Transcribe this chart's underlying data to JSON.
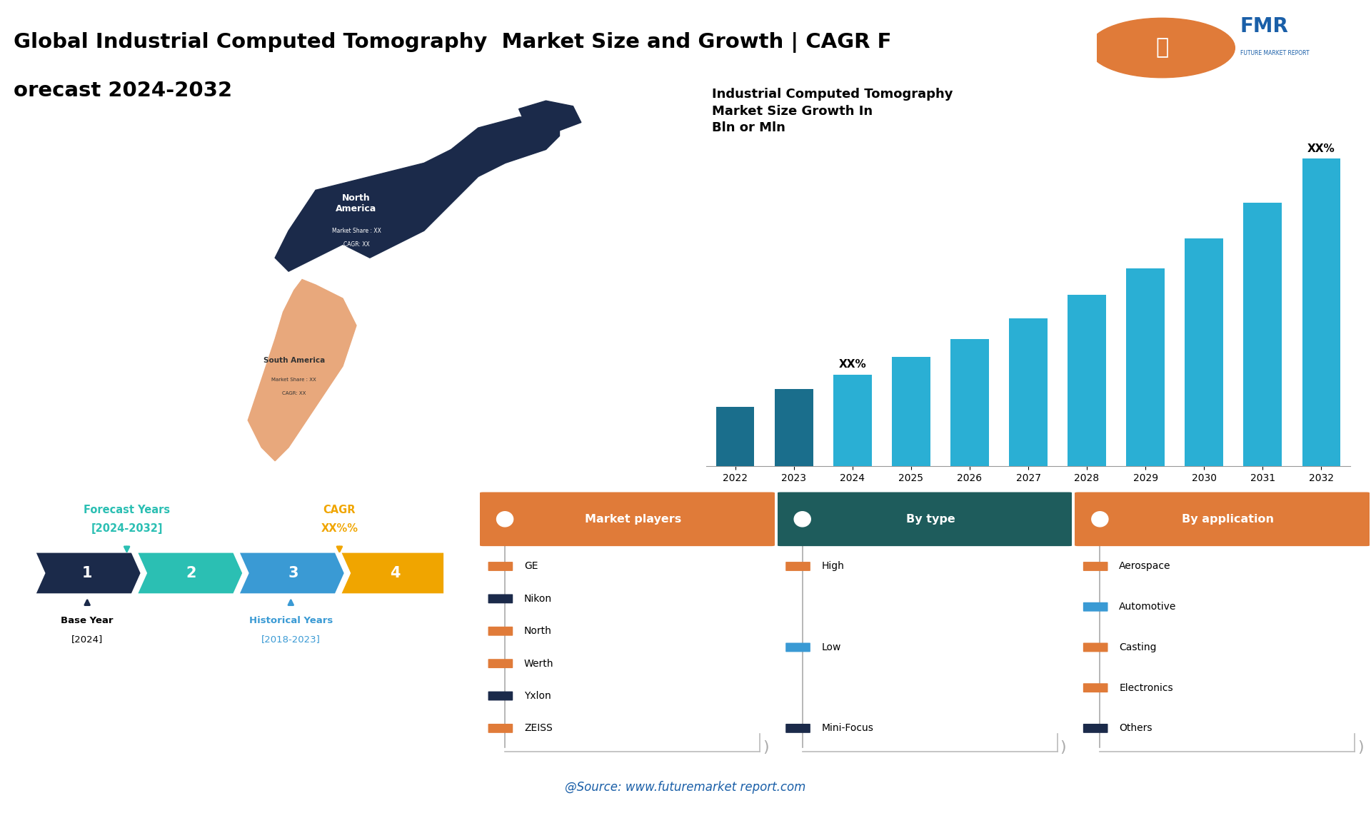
{
  "title_line1": "Global Industrial Computed Tomography  Market Size and Growth | CAGR F",
  "title_line2": "orecast 2024-2032",
  "title_fontsize": 21,
  "background_color": "#ffffff",
  "bar_chart": {
    "title": "Industrial Computed Tomography\nMarket Size Growth In\nBln or Mln",
    "years": [
      2022,
      2023,
      2024,
      2025,
      2026,
      2027,
      2028,
      2029,
      2030,
      2031,
      2032
    ],
    "values": [
      1.0,
      1.3,
      1.55,
      1.85,
      2.15,
      2.5,
      2.9,
      3.35,
      3.85,
      4.45,
      5.2
    ],
    "bar_color_dark": "#1a6e8c",
    "bar_color_light": "#2aafd4",
    "annotation_2024": "XX%",
    "annotation_2032": "XX%",
    "annotation_fontsize": 11
  },
  "map_regions": {
    "north_america": {
      "color": "#1b2a4a"
    },
    "south_america": {
      "color": "#e8a87c"
    },
    "europe": {
      "color": "#e07b39"
    },
    "mea": {
      "color": "#3ecfcf"
    },
    "asia_pacific": {
      "color": "#1e7a8c"
    },
    "australia": {
      "color": "#1e7a8c"
    }
  },
  "timeline": {
    "seg_colors": [
      "#1b2a4a",
      "#2bbfb3",
      "#3a9ad4",
      "#f0a500"
    ],
    "seg_labels": [
      "1",
      "2",
      "3",
      "4"
    ],
    "forecast_label1": "Forecast Years",
    "forecast_label2": "[2024-2032]",
    "forecast_color": "#2bbfb3",
    "cagr_label1": "CAGR",
    "cagr_label2": "XX%%",
    "cagr_color": "#f0a500",
    "base_year_label1": "Base Year",
    "base_year_label2": "[2024]",
    "hist_label1": "Historical Years",
    "hist_label2": "[2018-2023]",
    "hist_color": "#3a9ad4"
  },
  "market_players": {
    "header": "Market players",
    "header_color": "#e07b39",
    "items": [
      "GE",
      "Nikon",
      "North",
      "Werth",
      "Yxlon",
      "ZEISS"
    ],
    "item_colors": [
      "#e07b39",
      "#1b2a4a",
      "#e07b39",
      "#e07b39",
      "#1b2a4a",
      "#e07b39"
    ]
  },
  "by_type": {
    "header": "By type",
    "header_color": "#1e5c5c",
    "items": [
      "High",
      "Low",
      "Mini-Focus"
    ],
    "item_colors": [
      "#e07b39",
      "#3a9ad4",
      "#1b2a4a"
    ]
  },
  "by_application": {
    "header": "By application",
    "header_color": "#e07b39",
    "items": [
      "Aerospace",
      "Automotive",
      "Casting",
      "Electronics",
      "Others"
    ],
    "item_colors": [
      "#e07b39",
      "#3a9ad4",
      "#e07b39",
      "#e07b39",
      "#1b2a4a"
    ]
  },
  "source_text": "@Source: www.futuremarket report.com"
}
